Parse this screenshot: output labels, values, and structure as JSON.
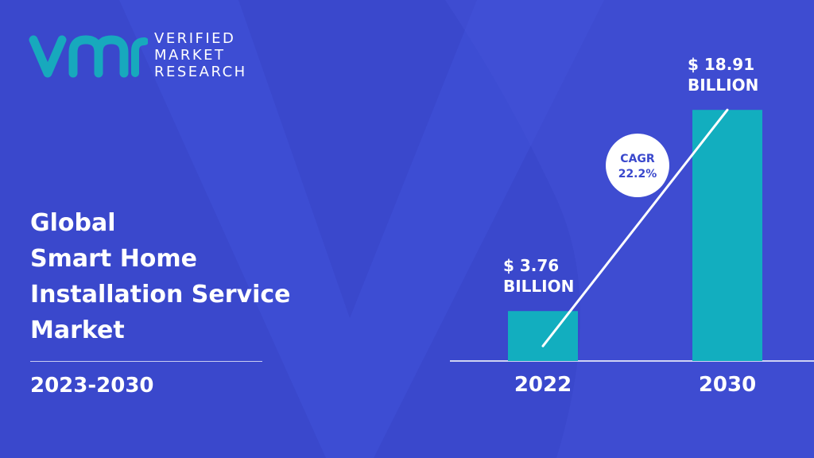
{
  "brand": {
    "lines": [
      "VERIFIED",
      "MARKET",
      "RESEARCH"
    ],
    "colors": {
      "accent": "#17a9bd",
      "background": "#3a48cc"
    }
  },
  "title": {
    "lines": [
      "Global",
      "Smart Home",
      "Installation Service",
      "Market"
    ]
  },
  "period": "2023-2030",
  "chart_data": {
    "type": "bar",
    "title": "",
    "xlabel": "",
    "ylabel": "",
    "categories": [
      "2022",
      "2030"
    ],
    "values": [
      3.76,
      18.91
    ],
    "value_labels": [
      {
        "line1": "$ 3.76",
        "line2": "BILLION"
      },
      {
        "line1": "$ 18.91",
        "line2": "BILLION"
      }
    ],
    "ylim": [
      0,
      20
    ],
    "bar_color": "#12aebf",
    "grid": false,
    "annotation": {
      "line1": "CAGR",
      "line2": "22.2%"
    }
  }
}
